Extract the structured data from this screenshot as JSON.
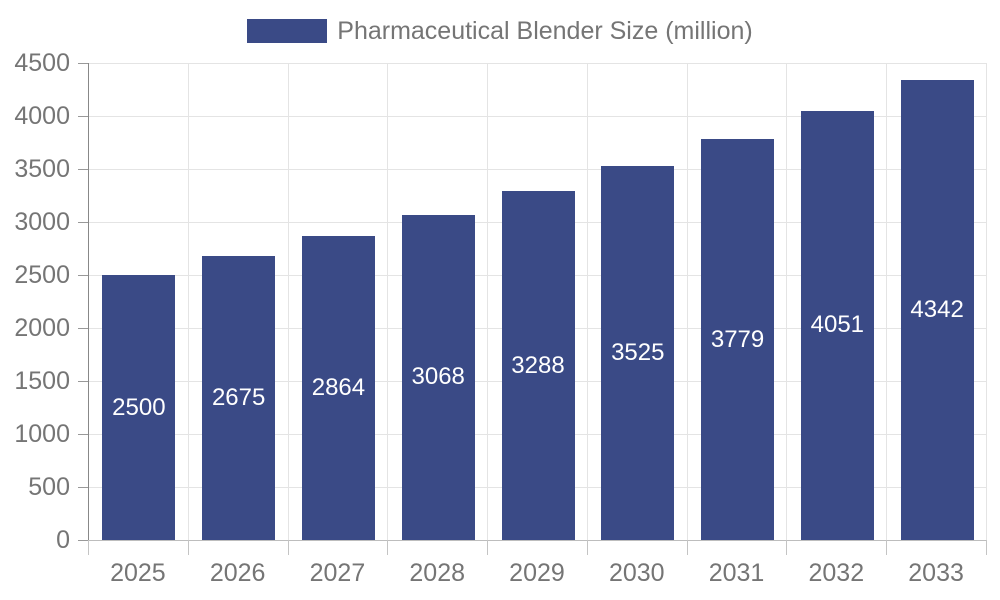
{
  "legend": {
    "label": "Pharmaceutical Blender Size (million)"
  },
  "chart_data": {
    "type": "bar",
    "title": "Pharmaceutical Blender Size (million)",
    "categories": [
      "2025",
      "2026",
      "2027",
      "2028",
      "2029",
      "2030",
      "2031",
      "2032",
      "2033"
    ],
    "values": [
      2500,
      2675,
      2864,
      3068,
      3288,
      3525,
      3779,
      4051,
      4342
    ],
    "bar_value_labels": [
      "2500",
      "2675",
      "2864",
      "3068",
      "3288",
      "3525",
      "3779",
      "4051",
      "4342"
    ],
    "xlabel": "",
    "ylabel": "",
    "ylim": [
      0,
      4500
    ],
    "ytick_step": 500,
    "yticks": [
      0,
      500,
      1000,
      1500,
      2000,
      2500,
      3000,
      3500,
      4000,
      4500
    ],
    "grid": true,
    "legend_position": "top-center",
    "colors": {
      "bar": "#3A4A86",
      "bar_label": "#FFFFFF",
      "axis_text": "#757575",
      "gridline": "#E4E4E4",
      "y_axis_line": "#888888",
      "x_axis_line": "#BDBDBD",
      "background": "#FFFFFF"
    }
  }
}
